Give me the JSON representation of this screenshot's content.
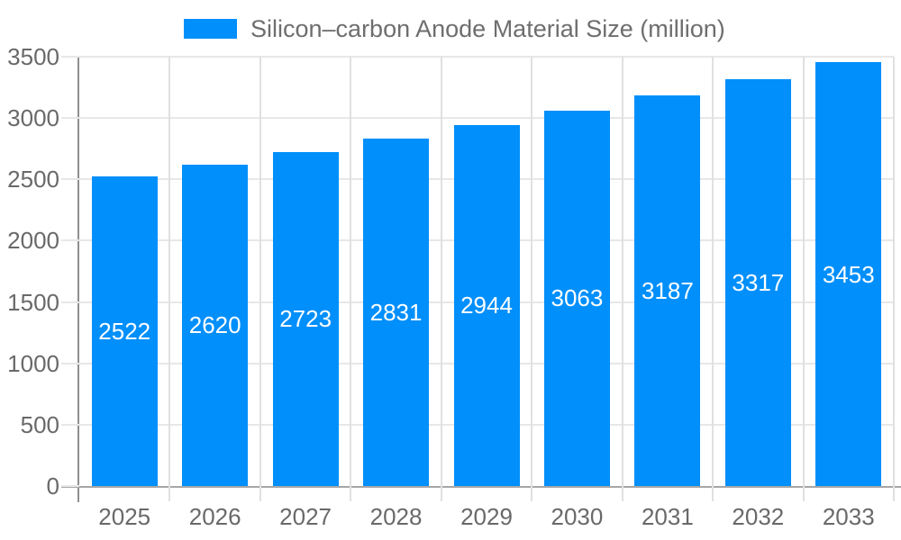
{
  "legend": {
    "label": "Silicon–carbon Anode Material Size (million)",
    "marker_color": "#008FFB",
    "position": "top"
  },
  "chart_data": {
    "type": "bar",
    "title": "Silicon–carbon Anode Material Size (million)",
    "categories": [
      "2025",
      "2026",
      "2027",
      "2028",
      "2029",
      "2030",
      "2031",
      "2032",
      "2033"
    ],
    "series": [
      {
        "name": "Silicon–carbon Anode Material Size (million)",
        "color": "#008FFB",
        "values": [
          2522,
          2620,
          2723,
          2831,
          2944,
          3063,
          3187,
          3317,
          3453
        ]
      }
    ],
    "value_labels_shown": true,
    "value_label_position": "inside-center",
    "xlabel": "",
    "ylabel": "",
    "ylim": [
      0,
      3500
    ],
    "yticks": [
      0,
      500,
      1000,
      1500,
      2000,
      2500,
      3000,
      3500
    ],
    "grid": true,
    "legend_position": "top"
  },
  "colors": {
    "bar": "#008FFB",
    "grid": "#e7e7e7",
    "grid_vertical": "#e0e0e0",
    "axis_line_y": "#8f8f8f",
    "axis_line_x": "#a6a6a6",
    "axis_label": "#696969",
    "legend_text": "#6e6e6e",
    "value_label": "#ffffff",
    "background": "#ffffff"
  }
}
